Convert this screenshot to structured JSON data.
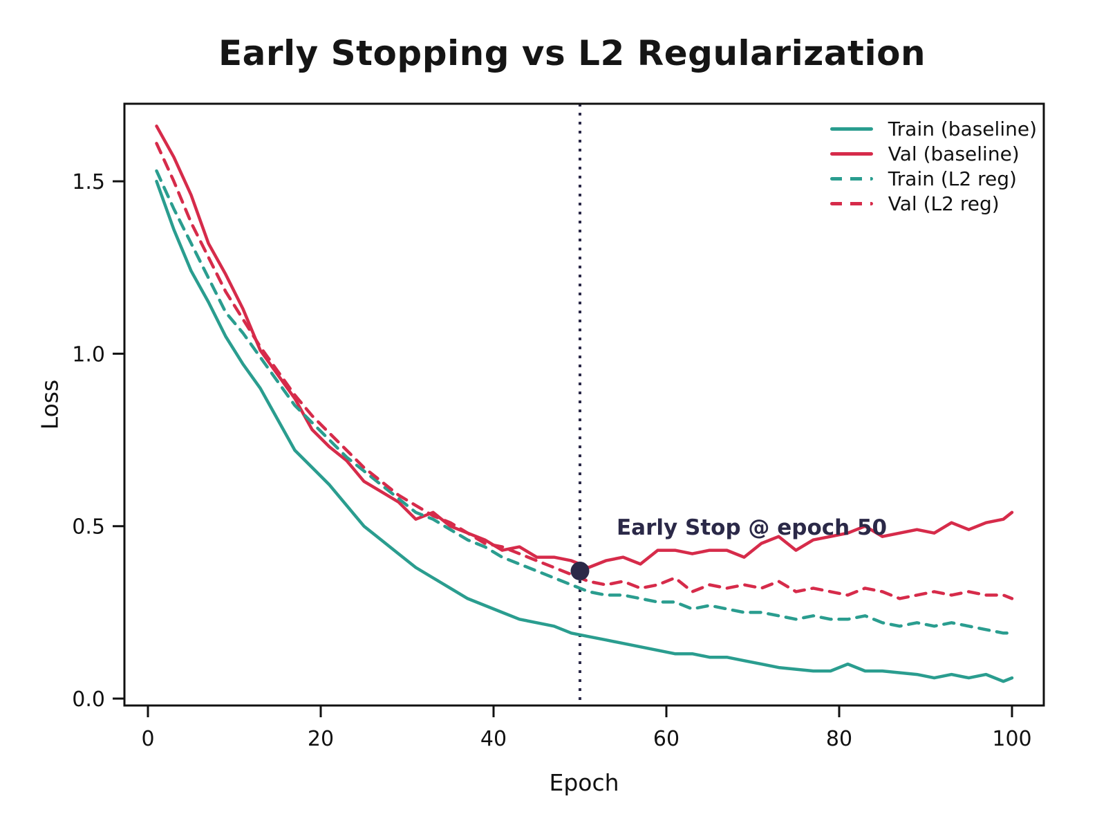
{
  "title": "Early Stopping vs L2 Regularization",
  "colors": {
    "teal": "#2a9d8f",
    "red": "#d62b4a",
    "navy": "#2b2948",
    "axis": "#111111",
    "background": "#ffffff"
  },
  "chart_data": {
    "type": "line",
    "title": "Early Stopping vs L2 Regularization",
    "xlabel": "Epoch",
    "ylabel": "Loss",
    "xticks": [
      0,
      20,
      40,
      60,
      80,
      100
    ],
    "xtick_labels": [
      "0",
      "20",
      "40",
      "60",
      "80",
      "100"
    ],
    "yticks": [
      0.0,
      0.5,
      1.0,
      1.5
    ],
    "ytick_labels": [
      "0.0",
      "0.5",
      "1.0",
      "1.5"
    ],
    "xlim": [
      0,
      100
    ],
    "ylim": [
      0.0,
      1.72
    ],
    "grid": false,
    "legend_position": "upper right",
    "x": [
      1,
      3,
      5,
      7,
      9,
      11,
      13,
      15,
      17,
      19,
      21,
      23,
      25,
      27,
      29,
      31,
      33,
      35,
      37,
      39,
      41,
      43,
      45,
      47,
      49,
      51,
      53,
      55,
      57,
      59,
      61,
      63,
      65,
      67,
      69,
      71,
      73,
      75,
      77,
      79,
      81,
      83,
      85,
      87,
      89,
      91,
      93,
      95,
      97,
      99,
      100
    ],
    "series": [
      {
        "name": "Train (baseline)",
        "color": "#2a9d8f",
        "dash": "solid",
        "values": [
          1.5,
          1.36,
          1.24,
          1.15,
          1.05,
          0.97,
          0.9,
          0.81,
          0.72,
          0.67,
          0.62,
          0.56,
          0.5,
          0.46,
          0.42,
          0.38,
          0.35,
          0.32,
          0.29,
          0.27,
          0.25,
          0.23,
          0.22,
          0.21,
          0.19,
          0.18,
          0.17,
          0.16,
          0.15,
          0.14,
          0.13,
          0.13,
          0.12,
          0.12,
          0.11,
          0.1,
          0.09,
          0.085,
          0.08,
          0.08,
          0.1,
          0.08,
          0.08,
          0.075,
          0.07,
          0.06,
          0.07,
          0.06,
          0.07,
          0.05,
          0.06
        ]
      },
      {
        "name": "Val (baseline)",
        "color": "#d62b4a",
        "dash": "solid",
        "values": [
          1.66,
          1.57,
          1.46,
          1.32,
          1.23,
          1.13,
          1.01,
          0.94,
          0.87,
          0.78,
          0.73,
          0.69,
          0.63,
          0.6,
          0.57,
          0.52,
          0.54,
          0.5,
          0.48,
          0.46,
          0.43,
          0.44,
          0.41,
          0.41,
          0.4,
          0.38,
          0.4,
          0.41,
          0.39,
          0.43,
          0.43,
          0.42,
          0.43,
          0.43,
          0.41,
          0.45,
          0.47,
          0.43,
          0.46,
          0.47,
          0.48,
          0.5,
          0.47,
          0.48,
          0.49,
          0.48,
          0.51,
          0.49,
          0.51,
          0.52,
          0.54
        ]
      },
      {
        "name": "Train (L2 reg)",
        "color": "#2a9d8f",
        "dash": "dashed",
        "values": [
          1.53,
          1.42,
          1.32,
          1.22,
          1.12,
          1.06,
          0.99,
          0.92,
          0.85,
          0.8,
          0.75,
          0.7,
          0.66,
          0.62,
          0.58,
          0.54,
          0.52,
          0.49,
          0.46,
          0.44,
          0.41,
          0.39,
          0.37,
          0.35,
          0.33,
          0.31,
          0.3,
          0.3,
          0.29,
          0.28,
          0.28,
          0.26,
          0.27,
          0.26,
          0.25,
          0.25,
          0.24,
          0.23,
          0.24,
          0.23,
          0.23,
          0.24,
          0.22,
          0.21,
          0.22,
          0.21,
          0.22,
          0.21,
          0.2,
          0.19,
          0.19
        ]
      },
      {
        "name": "Val (L2 reg)",
        "color": "#d62b4a",
        "dash": "dashed",
        "values": [
          1.61,
          1.5,
          1.38,
          1.28,
          1.18,
          1.1,
          1.02,
          0.95,
          0.88,
          0.82,
          0.77,
          0.72,
          0.67,
          0.63,
          0.59,
          0.56,
          0.53,
          0.51,
          0.48,
          0.45,
          0.44,
          0.42,
          0.4,
          0.38,
          0.36,
          0.34,
          0.33,
          0.34,
          0.32,
          0.33,
          0.35,
          0.31,
          0.33,
          0.32,
          0.33,
          0.32,
          0.34,
          0.31,
          0.32,
          0.31,
          0.3,
          0.32,
          0.31,
          0.29,
          0.3,
          0.31,
          0.3,
          0.31,
          0.3,
          0.3,
          0.29
        ]
      }
    ],
    "annotations": {
      "vline_x": 50,
      "vline_style": "dotted",
      "marker": {
        "x": 50,
        "y": 0.37
      },
      "label": "Early Stop @ epoch 50",
      "color": "#2b2948"
    }
  }
}
